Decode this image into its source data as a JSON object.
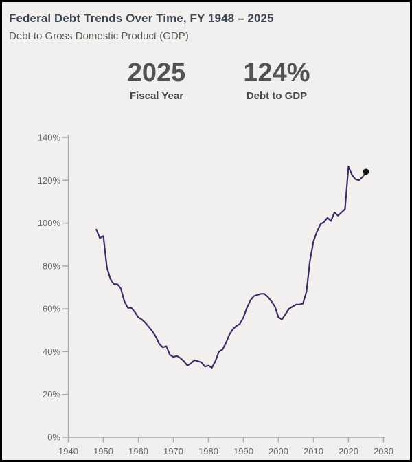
{
  "header": {
    "title": "Federal Debt Trends Over Time, FY 1948 – 2025",
    "subtitle": "Debt to Gross Domestic Product (GDP)"
  },
  "stats": [
    {
      "value": "2025",
      "label": "Fiscal Year"
    },
    {
      "value": "124%",
      "label": "Debt to GDP"
    }
  ],
  "chart_data": {
    "type": "line",
    "title": "Federal Debt Trends Over Time, FY 1948 – 2025",
    "subtitle": "Debt to Gross Domestic Product (GDP)",
    "xlabel": "Fiscal Year",
    "ylabel": "Debt to GDP (%)",
    "xlim": [
      1940,
      2030
    ],
    "ylim": [
      0,
      140
    ],
    "x_ticks": [
      "1940",
      "1950",
      "1960",
      "1970",
      "1980",
      "1990",
      "2000",
      "2010",
      "2020",
      "2030"
    ],
    "y_ticks": [
      "0%",
      "20%",
      "40%",
      "60%",
      "80%",
      "100%",
      "120%",
      "140%"
    ],
    "grid": false,
    "legend": "none",
    "line_color": "#402a66",
    "axis_color": "#a9a9a7",
    "series": [
      {
        "name": "Debt to GDP",
        "x": [
          1948,
          1949,
          1950,
          1951,
          1952,
          1953,
          1954,
          1955,
          1956,
          1957,
          1958,
          1959,
          1960,
          1961,
          1962,
          1963,
          1964,
          1965,
          1966,
          1967,
          1968,
          1969,
          1970,
          1971,
          1972,
          1973,
          1974,
          1975,
          1976,
          1977,
          1978,
          1979,
          1980,
          1981,
          1982,
          1983,
          1984,
          1985,
          1986,
          1987,
          1988,
          1989,
          1990,
          1991,
          1992,
          1993,
          1994,
          1995,
          1996,
          1997,
          1998,
          1999,
          2000,
          2001,
          2002,
          2003,
          2004,
          2005,
          2006,
          2007,
          2008,
          2009,
          2010,
          2011,
          2012,
          2013,
          2014,
          2015,
          2016,
          2017,
          2018,
          2019,
          2020,
          2021,
          2022,
          2023,
          2024,
          2025
        ],
        "values": [
          97,
          93,
          94,
          79.5,
          74,
          71.5,
          71.5,
          69.5,
          63.5,
          60.5,
          60.5,
          58.5,
          56,
          55,
          53.5,
          51.5,
          49.5,
          47,
          43.5,
          42,
          42.5,
          38.5,
          37.5,
          38,
          37,
          35.5,
          33.5,
          34.5,
          36,
          35.5,
          35,
          33,
          33.5,
          32.5,
          35.5,
          40,
          41,
          44,
          48,
          50.5,
          52,
          53,
          56,
          60.5,
          64,
          66,
          66.5,
          67,
          67,
          65.5,
          63.5,
          61,
          56,
          55,
          57.5,
          60,
          61,
          62,
          62,
          62.5,
          68,
          82.5,
          91.5,
          96,
          99.5,
          100.5,
          102.5,
          101,
          105,
          103.5,
          105,
          106.5,
          126.5,
          122.5,
          120.5,
          120,
          121.5,
          124
        ]
      }
    ],
    "endpoint": {
      "year": 2025,
      "value": 124,
      "marker": "black-dot",
      "color": "#141414"
    }
  }
}
